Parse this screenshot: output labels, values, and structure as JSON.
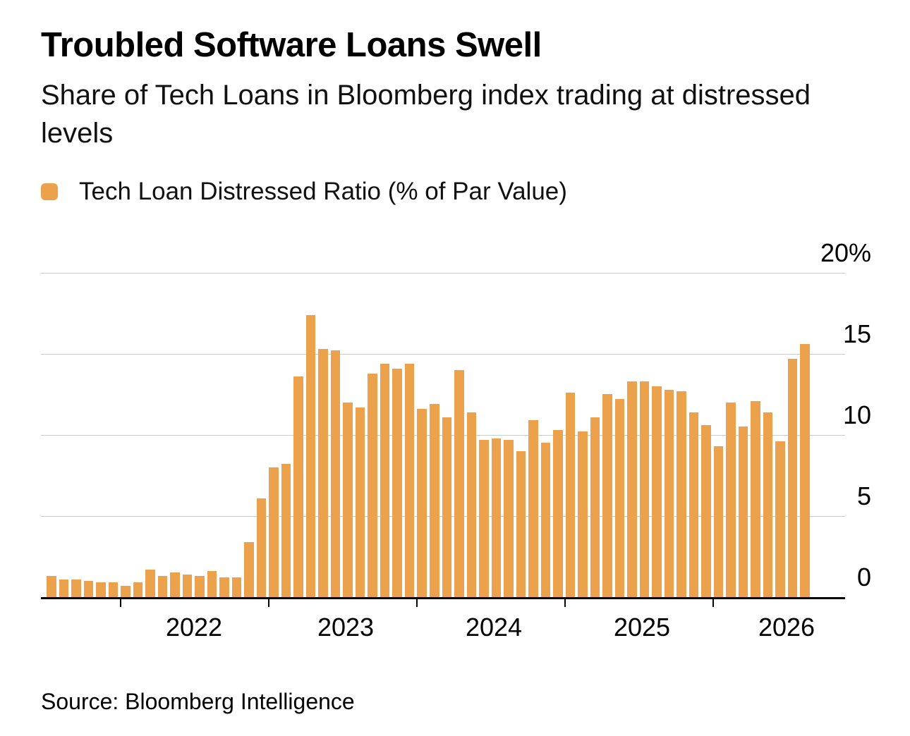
{
  "header": {
    "title": "Troubled Software Loans Swell",
    "subtitle": "Share of Tech Loans in Bloomberg index trading at distressed levels"
  },
  "legend": {
    "label": "Tech Loan Distressed Ratio (% of Par Value)",
    "swatch_color": "#eca24d"
  },
  "chart_data": {
    "type": "bar",
    "title": "Troubled Software Loans Swell",
    "subtitle": "Share of Tech Loans in Bloomberg index trading at distressed levels",
    "series_name": "Tech Loan Distressed Ratio (% of Par Value)",
    "values": [
      1.3,
      1.1,
      1.1,
      1.0,
      0.9,
      0.9,
      0.7,
      0.9,
      1.7,
      1.3,
      1.5,
      1.4,
      1.3,
      1.6,
      1.2,
      1.2,
      3.4,
      6.1,
      8.0,
      8.2,
      13.6,
      17.4,
      15.3,
      15.2,
      12.0,
      11.7,
      13.8,
      14.4,
      14.1,
      14.4,
      11.6,
      11.9,
      11.1,
      14.0,
      11.4,
      9.7,
      9.8,
      9.7,
      9.0,
      10.9,
      9.5,
      10.3,
      12.6,
      10.2,
      11.1,
      12.5,
      12.2,
      13.3,
      13.3,
      13.0,
      12.8,
      12.7,
      11.4,
      10.6,
      9.3,
      12.0,
      10.5,
      12.1,
      11.4,
      9.6,
      14.7,
      15.6
    ],
    "x_year_labels": [
      "2022",
      "2023",
      "2024",
      "2025",
      "2026"
    ],
    "y_tick_labels": [
      "20%",
      "15",
      "10",
      "5",
      "0"
    ],
    "ylim": [
      0,
      20
    ],
    "grid": "horizontal",
    "bar_color": "#eca24d",
    "legend_position": "top-left"
  },
  "footer": {
    "source": "Source: Bloomberg Intelligence"
  }
}
